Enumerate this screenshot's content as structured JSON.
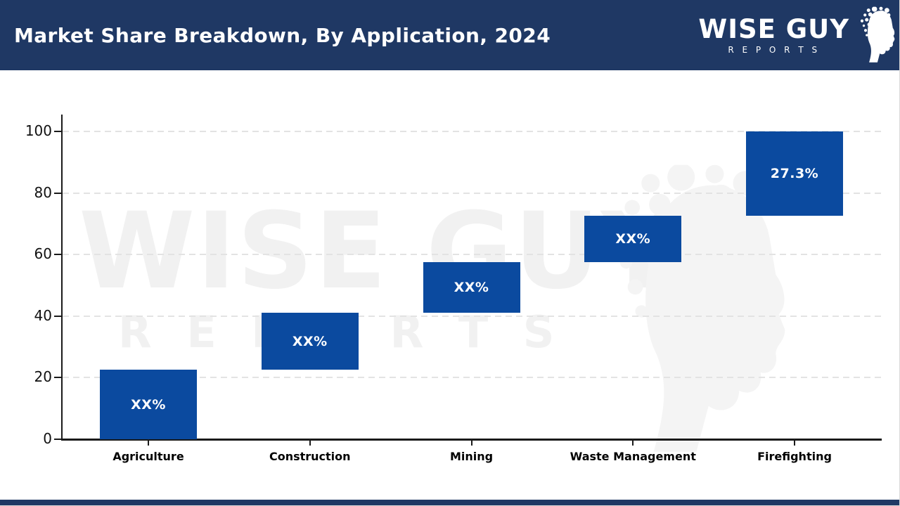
{
  "header": {
    "title": "Market Share Breakdown, By Application, 2024"
  },
  "brand": {
    "name_line1": "WISE GUY",
    "name_line2": "R E P O R T S",
    "head_icon": "dotted-head-profile"
  },
  "watermark": {
    "line1": "WISE GUY",
    "line2": "R E P O R T S"
  },
  "colors": {
    "header_bg": "#1f3864",
    "footer_bg": "#1f3864",
    "bar": "#0b4a9f",
    "bar_label_text": "#ffffff",
    "title_text": "#ffffff",
    "grid": "#e3e3e3",
    "axis": "#1a1a1a",
    "watermark": "#f1f1f1"
  },
  "chart_data": {
    "type": "bar",
    "subtype": "waterfall",
    "title": "Market Share Breakdown, By Application, 2024",
    "categories": [
      "Agriculture",
      "Construction",
      "Mining",
      "Waste Management",
      "Firefighting"
    ],
    "values": [
      22.5,
      18.5,
      16.5,
      15.2,
      27.3
    ],
    "cumulative_start": [
      0,
      22.5,
      41.0,
      57.5,
      72.7
    ],
    "bar_labels": [
      "XX%",
      "XX%",
      "XX%",
      "XX%",
      "27.3%"
    ],
    "xlabel": "",
    "ylabel": "",
    "ylim": [
      0,
      100
    ],
    "yticks": [
      0,
      20,
      40,
      60,
      80,
      100
    ],
    "grid": "horizontal-dashed",
    "legend": "none",
    "bar_color": "#0b4a9f",
    "value_label_color": "#ffffff"
  }
}
